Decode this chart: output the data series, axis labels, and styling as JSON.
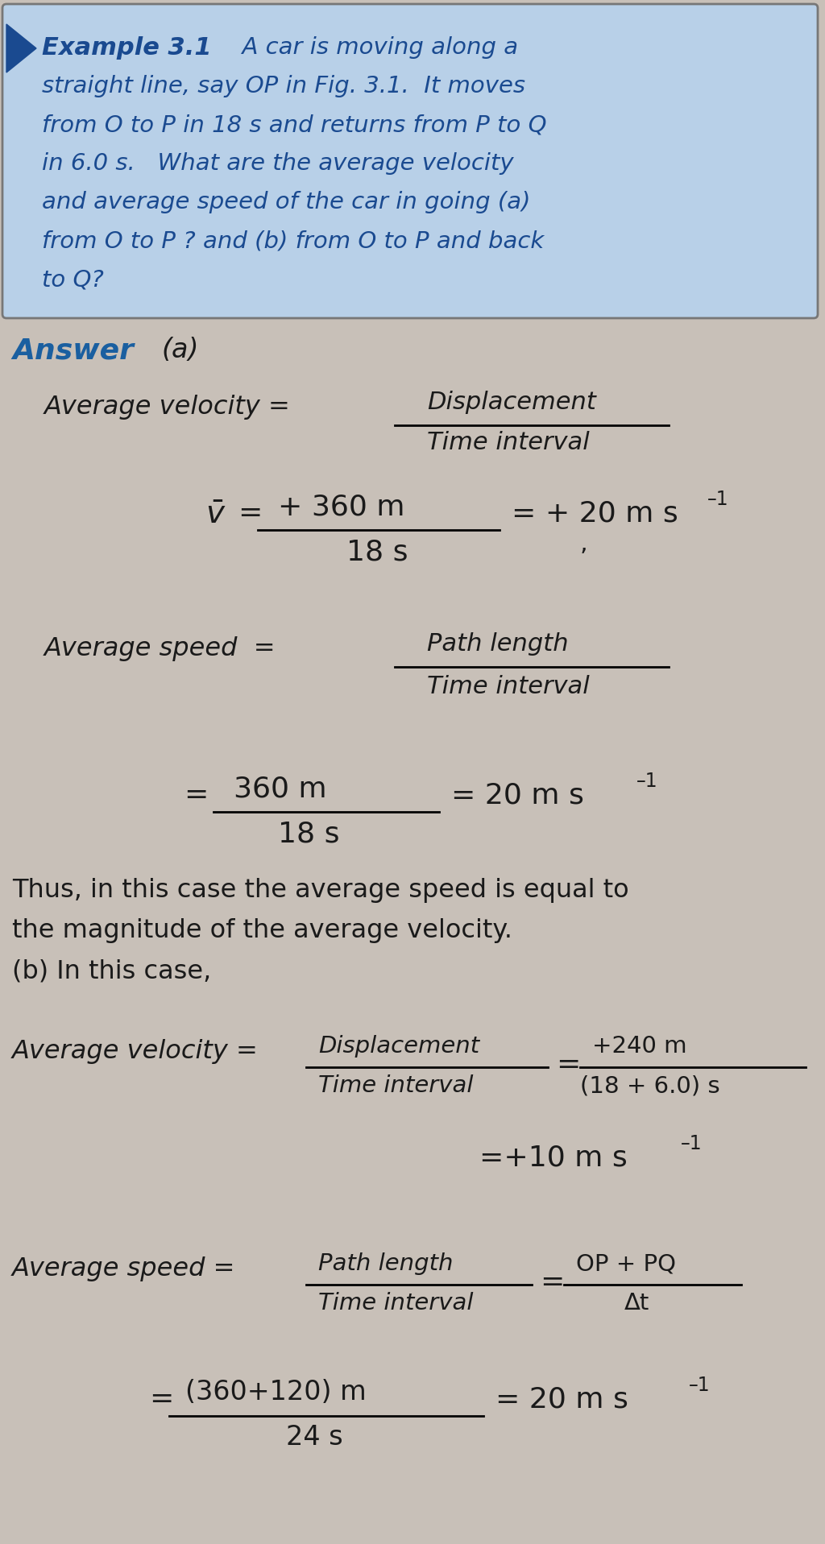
{
  "fig_w": 10.24,
  "fig_h": 19.17,
  "dpi": 100,
  "bg_color": "#c8c0b8",
  "box_bg": "#b8d0e8",
  "box_border": "#555555",
  "text_dark": "#1a1a1a",
  "text_blue": "#1a4a90",
  "answer_blue": "#1a5fa0",
  "example_lines": [
    "Example 3.1  A car is moving along a",
    "straight line, say OP in Fig. 3.1.  It moves",
    "from O to P in 18 s and returns from P to Q",
    "in 6.0 s.   What are the average velocity",
    "and average speed of the car in going (a)",
    "from O to P ? and (b) from O to P and back",
    "to Q?"
  ]
}
